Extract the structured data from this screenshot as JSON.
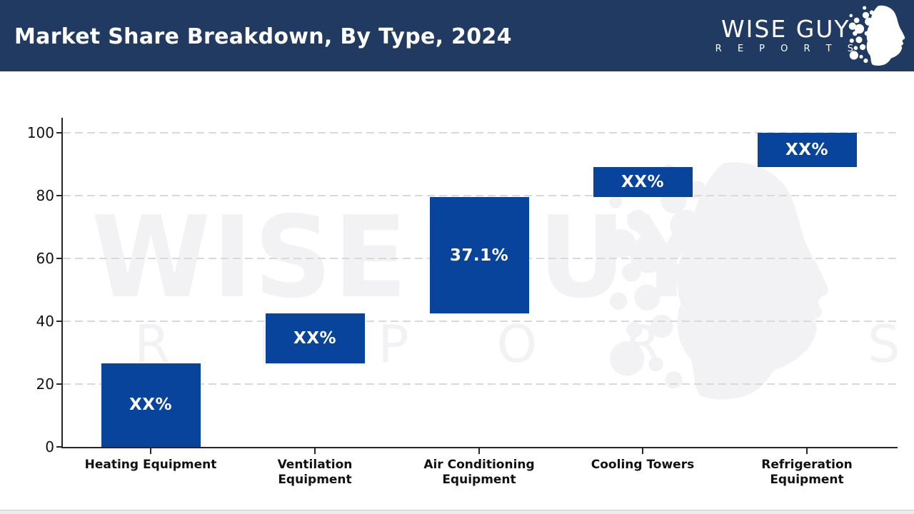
{
  "header": {
    "title": "Market Share Breakdown, By Type, 2024",
    "logo": {
      "line1": "WISE GUY",
      "line2": "R E P O R T S"
    }
  },
  "watermark": {
    "line1": "WISE GUY",
    "line2": "R E P O R T S"
  },
  "chart_data": {
    "type": "bar",
    "variant": "waterfall",
    "title": "Market Share Breakdown, By Type, 2024",
    "xlabel": "",
    "ylabel": "",
    "ylim": [
      0,
      104
    ],
    "y_ticks": [
      0,
      20,
      40,
      60,
      80,
      100
    ],
    "grid": "horizontal dashed",
    "legend": "none",
    "categories": [
      "Heating Equipment",
      "Ventilation\nEquipment",
      "Air Conditioning\nEquipment",
      "Cooling Towers",
      "Refrigeration\nEquipment"
    ],
    "segments": [
      {
        "category": "Heating Equipment",
        "start": 0,
        "end": 26.6,
        "value": 26.6,
        "label": "XX%"
      },
      {
        "category": "Ventilation Equipment",
        "start": 26.6,
        "end": 42.4,
        "value": 15.8,
        "label": "XX%"
      },
      {
        "category": "Air Conditioning Equipment",
        "start": 42.4,
        "end": 79.5,
        "value": 37.1,
        "label": "37.1%"
      },
      {
        "category": "Cooling Towers",
        "start": 79.5,
        "end": 89.2,
        "value": 9.7,
        "label": "XX%"
      },
      {
        "category": "Refrigeration Equipment",
        "start": 89.2,
        "end": 100.0,
        "value": 10.8,
        "label": "XX%"
      }
    ],
    "colors": {
      "bar": "#08449c",
      "bar_label": "#ffffff",
      "header_bg": "#203a62",
      "axis": "#262626",
      "grid": "#d9d9d9",
      "watermark": "#f2f2f4"
    }
  }
}
